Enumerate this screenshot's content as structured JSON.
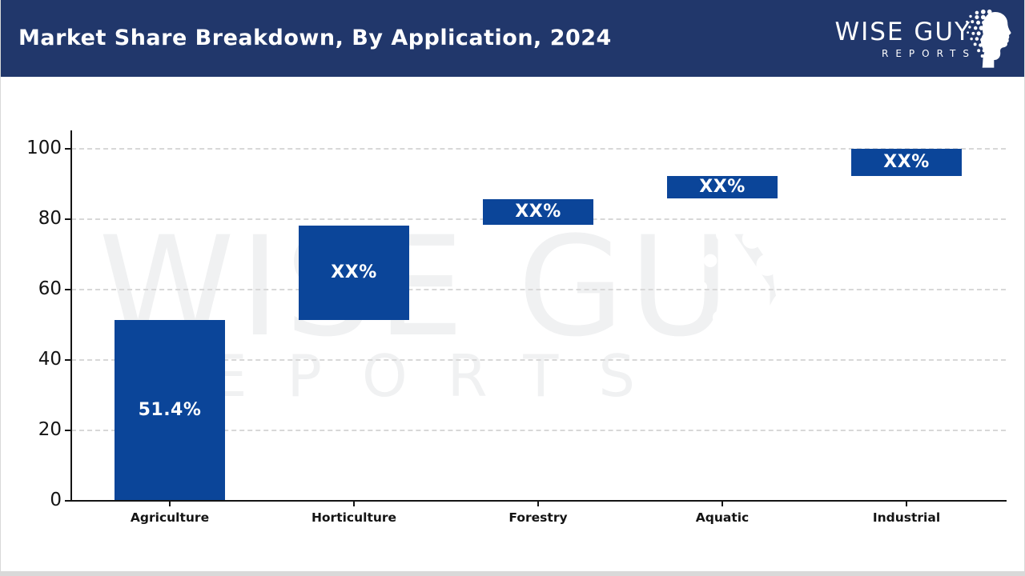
{
  "colors": {
    "header_navy": "#21376b",
    "bar_blue": "#0b4599",
    "grid_gray": "#d8d8d8",
    "watermark_gray": "#f0f1f2",
    "footer_gray": "#d9d9d9"
  },
  "header": {
    "title": "Market Share Breakdown, By Application, 2024",
    "logo": {
      "line1": "WISE GUY",
      "line2": "REPORTS"
    }
  },
  "watermark": {
    "line1": "WISE GUY",
    "line2": "REPORTS"
  },
  "chart_data": {
    "type": "bar",
    "subtype": "waterfall",
    "title": "Market Share Breakdown, By Application, 2024",
    "xlabel": "",
    "ylabel": "",
    "ylim": [
      0,
      100
    ],
    "yticks": [
      0,
      20,
      40,
      60,
      80,
      100
    ],
    "grid": "horizontal-dashed",
    "legend": "none",
    "categories": [
      "Agriculture",
      "Horticulture",
      "Forestry",
      "Aquatic",
      "Industrial"
    ],
    "segments": [
      {
        "category": "Agriculture",
        "start": 0,
        "end": 51.4,
        "label": "51.4%"
      },
      {
        "category": "Horticulture",
        "start": 51.4,
        "end": 78.2,
        "label": "XX%"
      },
      {
        "category": "Forestry",
        "start": 78.4,
        "end": 85.7,
        "label": "XX%"
      },
      {
        "category": "Aquatic",
        "start": 85.9,
        "end": 92.3,
        "label": "XX%"
      },
      {
        "category": "Industrial",
        "start": 92.3,
        "end": 100,
        "label": "XX%"
      }
    ]
  }
}
